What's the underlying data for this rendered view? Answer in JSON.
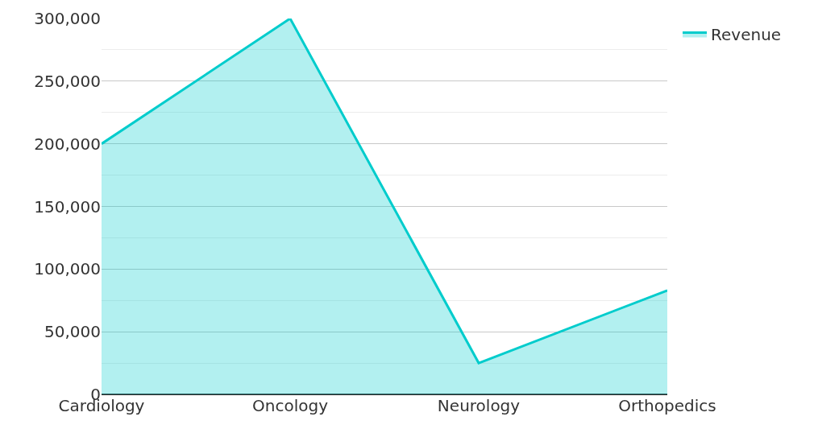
{
  "chart_data": {
    "type": "area",
    "categories": [
      "Cardiology",
      "Oncology",
      "Neurology",
      "Orthopedics"
    ],
    "series": [
      {
        "name": "Revenue",
        "color": "#00cccc",
        "values": [
          200000,
          300000,
          25000,
          83000
        ]
      }
    ],
    "ylim": [
      0,
      300000
    ],
    "yticks": [
      {
        "value": 0,
        "label": "0"
      },
      {
        "value": 50000,
        "label": "50,000"
      },
      {
        "value": 100000,
        "label": "100,000"
      },
      {
        "value": 150000,
        "label": "150,000"
      },
      {
        "value": 200000,
        "label": "200,000"
      },
      {
        "value": 250000,
        "label": "250,000"
      },
      {
        "value": 300000,
        "label": "300,000"
      }
    ],
    "grid": "y",
    "legend": "top right",
    "marker": "none"
  }
}
